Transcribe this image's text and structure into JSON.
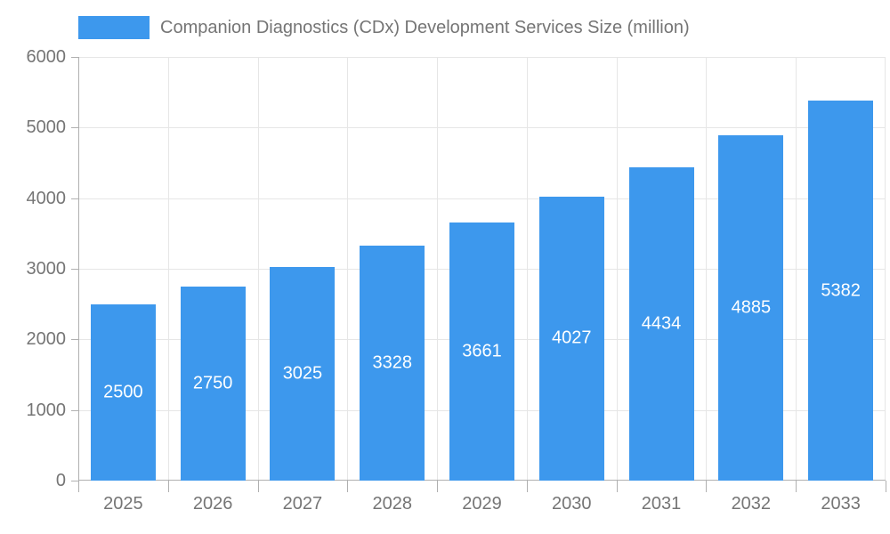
{
  "colors": {
    "bar": "#3d98ed",
    "bar_label": "#ffffff",
    "axis": "#b0b0b0",
    "grid": "#e6e6e6",
    "text": "#757575",
    "background": "#ffffff"
  },
  "legend": {
    "label": "Companion Diagnostics (CDx) Development Services Size (million)"
  },
  "chart_data": {
    "type": "bar",
    "title": "Companion Diagnostics (CDx) Development Services Size (million)",
    "categories": [
      "2025",
      "2026",
      "2027",
      "2028",
      "2029",
      "2030",
      "2031",
      "2032",
      "2033"
    ],
    "values": [
      2500,
      2750,
      3025,
      3328,
      3661,
      4027,
      4434,
      4885,
      5382
    ],
    "xlabel": "",
    "ylabel": "",
    "ylim": [
      0,
      6000
    ],
    "ytick_step": 1000,
    "yticks": [
      0,
      1000,
      2000,
      3000,
      4000,
      5000,
      6000
    ],
    "grid": true,
    "legend_position": "top-left",
    "bar_value_labels": "inside-center"
  }
}
